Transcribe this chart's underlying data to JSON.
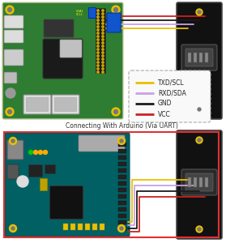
{
  "bg_color": "#ffffff",
  "legend_items": [
    {
      "label": "TXD/SCL",
      "color": "#e8c000"
    },
    {
      "label": "RXD/SDA",
      "color": "#c8a0e8"
    },
    {
      "label": "GND",
      "color": "#1a1a1a"
    },
    {
      "label": "VCC",
      "color": "#cc2020"
    }
  ],
  "caption": "Connecting With Arduino (Via UART)",
  "wire_colors_top": [
    "#cc2020",
    "#1a1a1a",
    "#c8a0e8",
    "#e8c000"
  ],
  "wire_colors_bot": [
    "#e8c000",
    "#c8a0e8",
    "#1a1a1a",
    "#cc2020"
  ],
  "rpi_color": "#2e7d32",
  "rpi_border": "#c8c8a0",
  "arduino_color": "#006064",
  "sensor_color": "#111111",
  "legend_border": "#aaaaaa",
  "legend_bg": "#f9f9f9",
  "red_border": "#e03030",
  "mount_hole_color": "#e8c000",
  "mount_hole_inner": "#777777"
}
